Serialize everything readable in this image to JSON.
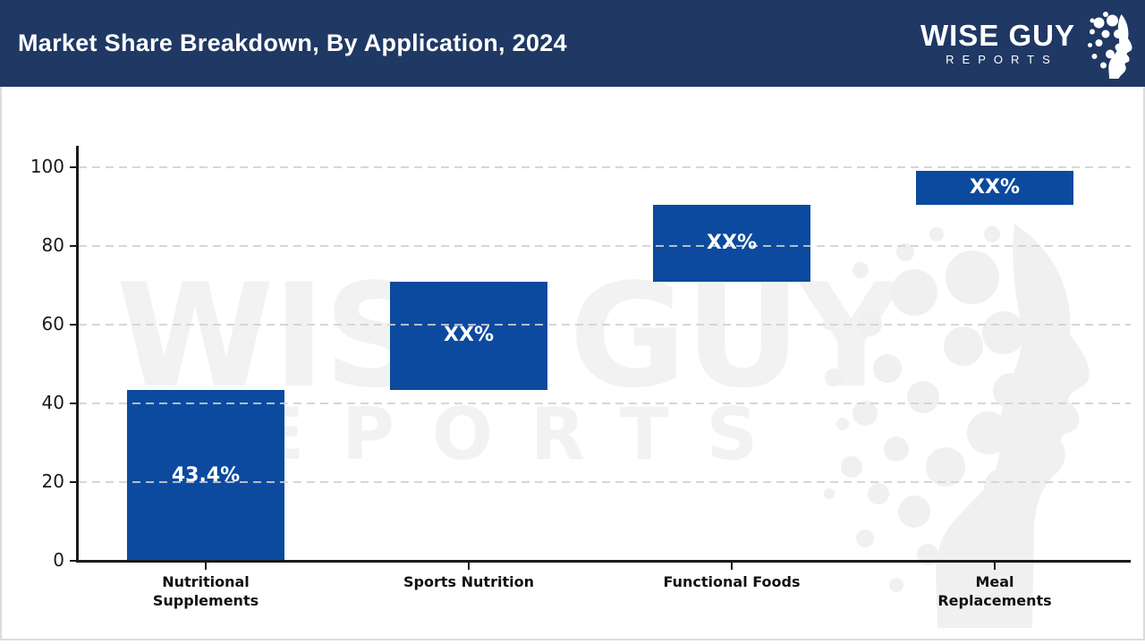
{
  "header": {
    "title": "Market Share Breakdown, By Application, 2024",
    "logo": {
      "wordmark": "WISE GUY",
      "reports": "REPORTS"
    }
  },
  "watermark": {
    "wordmark": "WISE GUY",
    "reports": "REPORTS"
  },
  "colors": {
    "header_bg": "#1f3864",
    "bar": "#0b4a9e",
    "grid": "#d4d4d4",
    "axis": "#1a1a1a",
    "watermark": "#f2f2f2",
    "value_label": "#ffffff",
    "frame_border": "#dcdcdc"
  },
  "chart_data": {
    "type": "bar",
    "subtype": "waterfall",
    "title": "Market Share Breakdown, By Application, 2024",
    "categories": [
      "Nutritional Supplements",
      "Sports Nutrition",
      "Functional Foods",
      "Meal Replacements"
    ],
    "segments": [
      {
        "category": "Nutritional Supplements",
        "start": 0,
        "end": 43.4,
        "label": "43.4%"
      },
      {
        "category": "Sports Nutrition",
        "start": 43.4,
        "end": 71.0,
        "label": "XX%"
      },
      {
        "category": "Functional Foods",
        "start": 71.0,
        "end": 90.4,
        "label": "XX%"
      },
      {
        "category": "Meal Replacements",
        "start": 90.4,
        "end": 99.2,
        "label": "XX%"
      }
    ],
    "y_ticks": [
      0,
      20,
      40,
      60,
      80,
      100
    ],
    "ylim": [
      0,
      105
    ],
    "xlabel": "",
    "ylabel": "",
    "grid": "dashed-horizontal-over-bars",
    "legend": "none"
  }
}
